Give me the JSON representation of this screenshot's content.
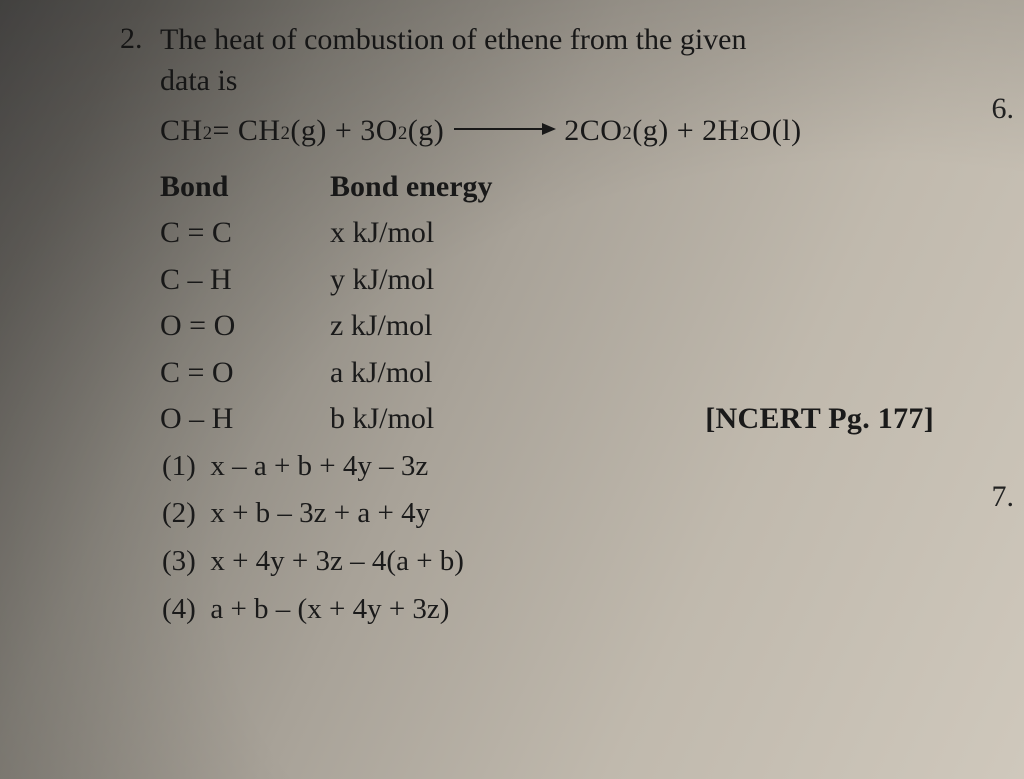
{
  "question": {
    "number": "2.",
    "stem_line1": "The heat of combustion of ethene from the given",
    "stem_line2": "data is",
    "equation": {
      "lhs_a": "CH",
      "lhs_a_sub": "2",
      "lhs_b": " = CH",
      "lhs_b_sub": "2",
      "lhs_c": "(g) + 3O",
      "lhs_c_sub": "2",
      "lhs_d": "(g)",
      "rhs_a": "2CO",
      "rhs_a_sub": "2",
      "rhs_b": "(g) + 2H",
      "rhs_b_sub": "2",
      "rhs_c": "O(l)"
    },
    "bond_header_1": "Bond",
    "bond_header_2": "Bond energy",
    "rows": [
      {
        "bond": "C = C",
        "energy": "x kJ/mol"
      },
      {
        "bond": "C – H",
        "energy": "y kJ/mol"
      },
      {
        "bond": "O = O",
        "energy": "z kJ/mol"
      },
      {
        "bond": "C = O",
        "energy": "a kJ/mol"
      },
      {
        "bond": "O – H",
        "energy": "b kJ/mol"
      }
    ],
    "ncert": "[NCERT Pg. 177]",
    "options": [
      {
        "n": "(1)",
        "text": "x – a + b + 4y – 3z"
      },
      {
        "n": "(2)",
        "text": "x + b – 3z + a + 4y"
      },
      {
        "n": "(3)",
        "text": "x + 4y + 3z – 4(a + b)"
      },
      {
        "n": "(4)",
        "text": "a + b – (x + 4y + 3z)"
      }
    ]
  },
  "margin": {
    "six": "6.",
    "seven": "7."
  },
  "style": {
    "text_color": "#1a1a1a",
    "background_gradient": [
      "#5a5856",
      "#cfc8bc"
    ],
    "base_fontsize": 30
  }
}
